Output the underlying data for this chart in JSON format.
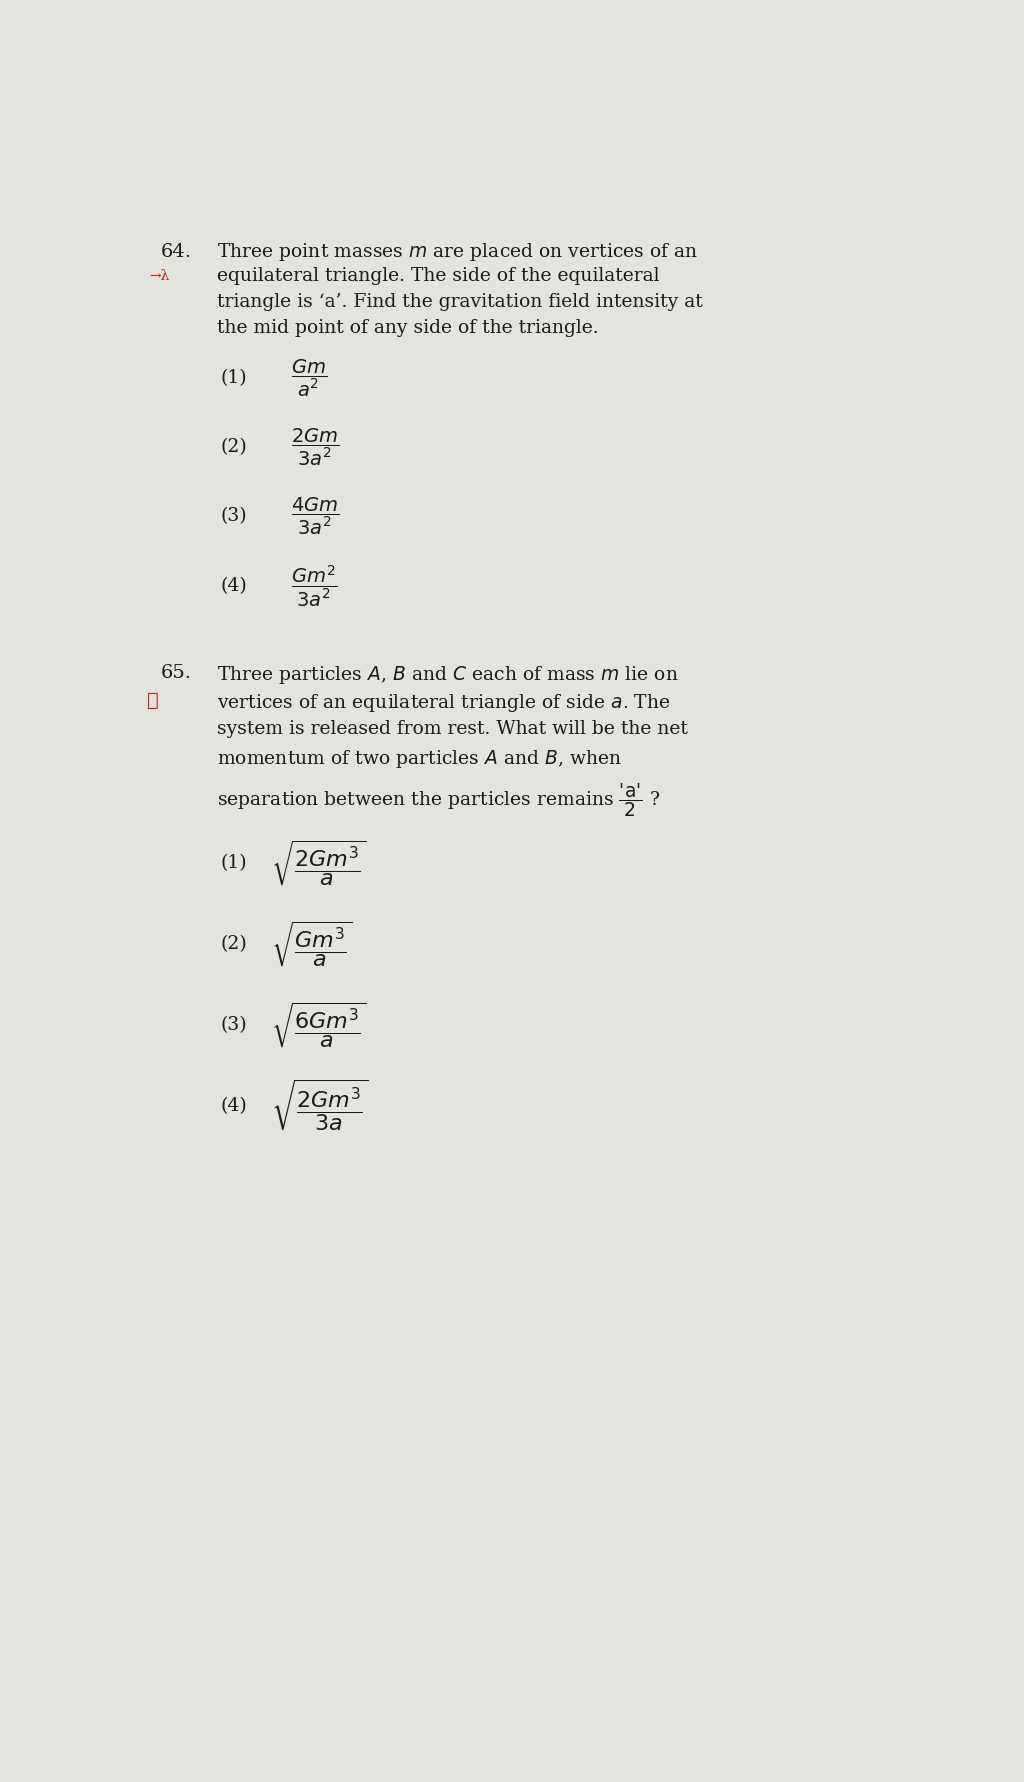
{
  "bg_color": "#e5e3de",
  "text_color": "#1a1a1a",
  "red_color": "#cc2200",
  "font_size_body": 13.5,
  "font_size_math": 14.0,
  "font_size_qnum": 14.0,
  "q64_lines": [
    "Three point masses $m$ are placed on vertices of an",
    "equilateral triangle. The side of the equilateral",
    "triangle is ‘a’. Find the gravitation field intensity at",
    "the mid point of any side of the triangle."
  ],
  "q64_opts": [
    {
      "label": "(1)",
      "math": "$\\dfrac{Gm}{a^2}$"
    },
    {
      "label": "(2)",
      "math": "$\\dfrac{2Gm}{3a^2}$"
    },
    {
      "label": "(3)",
      "math": "$\\dfrac{4Gm}{3a^2}$"
    },
    {
      "label": "(4)",
      "math": "$\\dfrac{Gm^2}{3a^2}$"
    }
  ],
  "q65_lines": [
    "Three particles $A$, $B$ and $C$ each of mass $m$ lie on",
    "vertices of an equilateral triangle of side $a$. The",
    "system is released from rest. What will be the net",
    "momentum of two particles $A$ and $B$, when",
    "separation between the particles remains $\\dfrac{\\text{'a'}}{2}$ ?"
  ],
  "q65_opts": [
    {
      "label": "(1)",
      "math": "$\\sqrt{\\dfrac{2Gm^3}{a}}$"
    },
    {
      "label": "(2)",
      "math": "$\\sqrt{\\dfrac{Gm^3}{a}}$"
    },
    {
      "label": "(3)",
      "math": "$\\sqrt{\\dfrac{6Gm^3}{a}}$"
    },
    {
      "label": "(4)",
      "math": "$\\sqrt{\\dfrac{2Gm^3}{3a}}$"
    }
  ]
}
